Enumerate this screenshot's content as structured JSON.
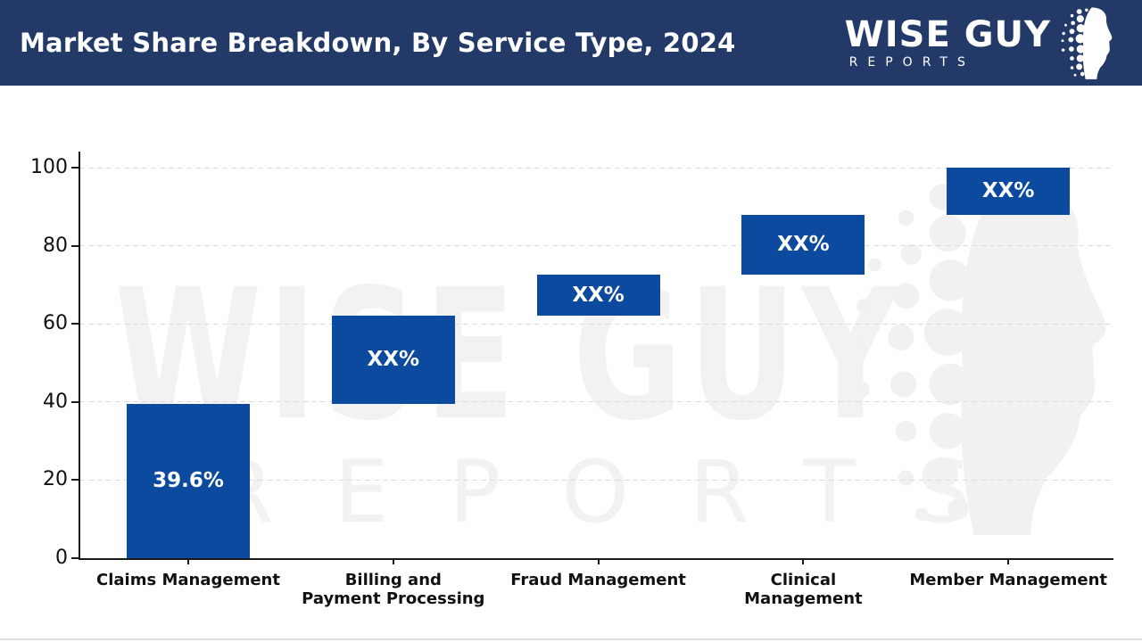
{
  "header": {
    "title": "Market Share Breakdown, By Service Type, 2024",
    "logo": {
      "line1": "WISE GUY",
      "line2": "REPORTS"
    }
  },
  "watermark": {
    "line1": "WISE GUY",
    "line2": "REPORTS"
  },
  "colors": {
    "header_bg": "#233a69",
    "bar": "#0b4a9e",
    "axis": "#1a1a1a",
    "grid": "#dcdcdc",
    "watermark": "#f2f2f2",
    "value_label": "#ffffff",
    "tick_label": "#111111"
  },
  "chart_data": {
    "type": "bar",
    "subtype": "waterfall",
    "title": "Market Share Breakdown, By Service Type, 2024",
    "xlabel": "",
    "ylabel": "",
    "ylim": [
      0,
      104
    ],
    "yticks": [
      0,
      20,
      40,
      60,
      80,
      100
    ],
    "grid": "horizontal-dashed",
    "legend": "none",
    "bar_color": "#0b4a9e",
    "categories": [
      "Claims Management",
      "Billing and Payment Processing",
      "Fraud Management",
      "Clinical Management",
      "Member Management"
    ],
    "category_lines": [
      [
        "Claims Management"
      ],
      [
        "Billing and",
        "Payment Processing"
      ],
      [
        "Fraud Management"
      ],
      [
        "Clinical",
        "Management"
      ],
      [
        "Member Management"
      ]
    ],
    "segments": [
      {
        "label": "39.6%",
        "start": 0,
        "end": 39.6
      },
      {
        "label": "XX%",
        "start": 39.6,
        "end": 62
      },
      {
        "label": "XX%",
        "start": 62,
        "end": 72.5
      },
      {
        "label": "XX%",
        "start": 72.5,
        "end": 88
      },
      {
        "label": "XX%",
        "start": 88,
        "end": 100
      }
    ]
  }
}
